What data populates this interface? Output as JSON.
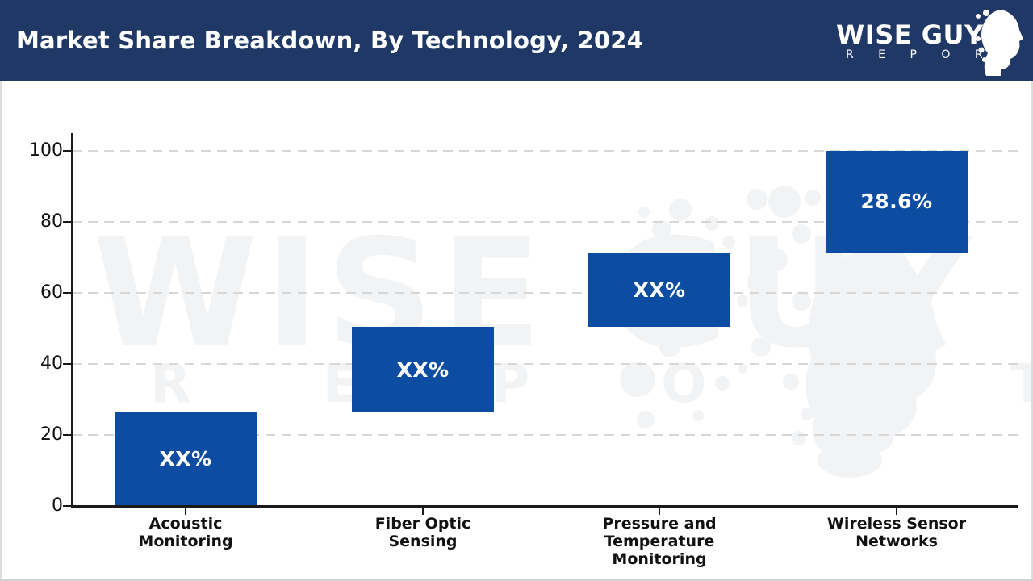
{
  "header": {
    "title": "Market Share Breakdown, By Technology, 2024",
    "logo": {
      "name": "WISE GUY",
      "subtitle": "R E P O R T S"
    }
  },
  "watermark": {
    "line1": "WISE GUY",
    "line2": "R E P O R T S"
  },
  "colors": {
    "header_bg": "#1F3865",
    "bar": "#0C4DA2",
    "bar_label": "#FFFFFF",
    "grid": "#D7D7D7",
    "axis": "#1A1A1A",
    "watermark": "#F2F3F5"
  },
  "chart_data": {
    "type": "bar",
    "subtype": "waterfall",
    "title": "Market Share Breakdown, By Technology, 2024",
    "xlabel": "",
    "ylabel": "",
    "ylim": [
      0,
      100
    ],
    "yticks": [
      0,
      20,
      40,
      60,
      80,
      100
    ],
    "grid": "horizontal-dashed",
    "legend": "none",
    "categories": [
      "Acoustic\nMonitoring",
      "Fiber Optic\nSensing",
      "Pressure and\nTemperature\nMonitoring",
      "Wireless Sensor\nNetworks"
    ],
    "bars": [
      {
        "category": "Acoustic Monitoring",
        "label": "XX%",
        "start": 0,
        "end": 26.4,
        "value": 26.4
      },
      {
        "category": "Fiber Optic Sensing",
        "label": "XX%",
        "start": 26.4,
        "end": 50.4,
        "value": 24.0
      },
      {
        "category": "Pressure and Temperature Monitoring",
        "label": "XX%",
        "start": 50.4,
        "end": 71.4,
        "value": 21.0
      },
      {
        "category": "Wireless Sensor Networks",
        "label": "28.6%",
        "start": 71.4,
        "end": 100,
        "value": 28.6
      }
    ]
  }
}
